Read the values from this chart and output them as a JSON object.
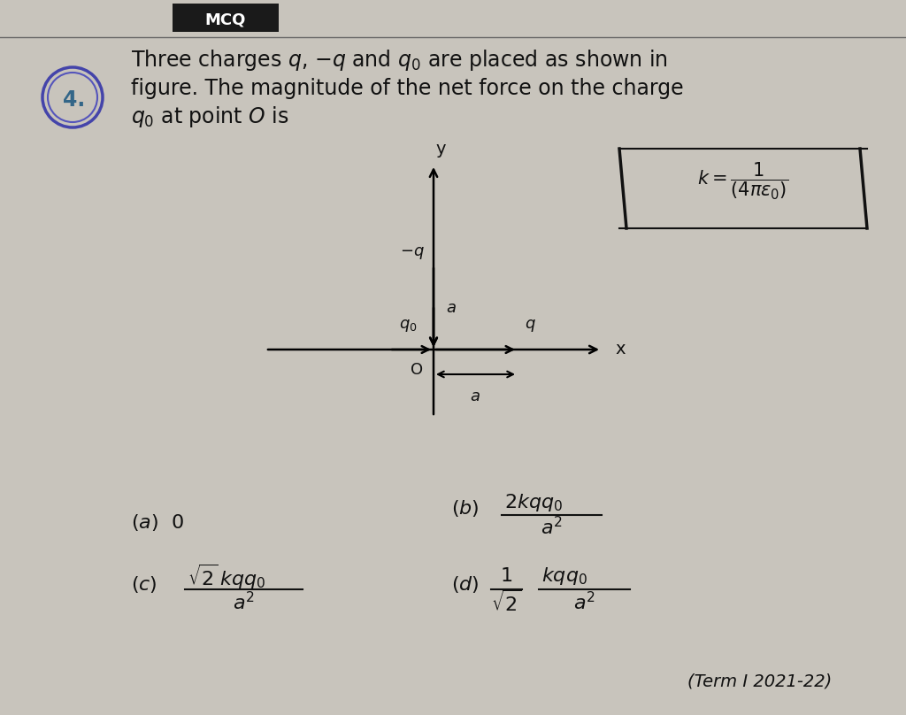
{
  "bg_color": "#c8c4bc",
  "white_panel_color": "#d8d4cc",
  "title_bar_color": "#1a1a1a",
  "title_bar_text": "MCQ",
  "question_number": "4.",
  "question_text_line1": "Three charges $q$, $-q$ and $q_0$ are placed as shown in",
  "question_text_line2": "figure. The magnitude of the net force on the charge",
  "question_text_line3": "$q_0$ at point $O$ is",
  "footer": "(Term I 2021-22)",
  "text_color": "#111111",
  "font_size_question": 17,
  "font_size_options": 16,
  "font_size_diagram": 13
}
